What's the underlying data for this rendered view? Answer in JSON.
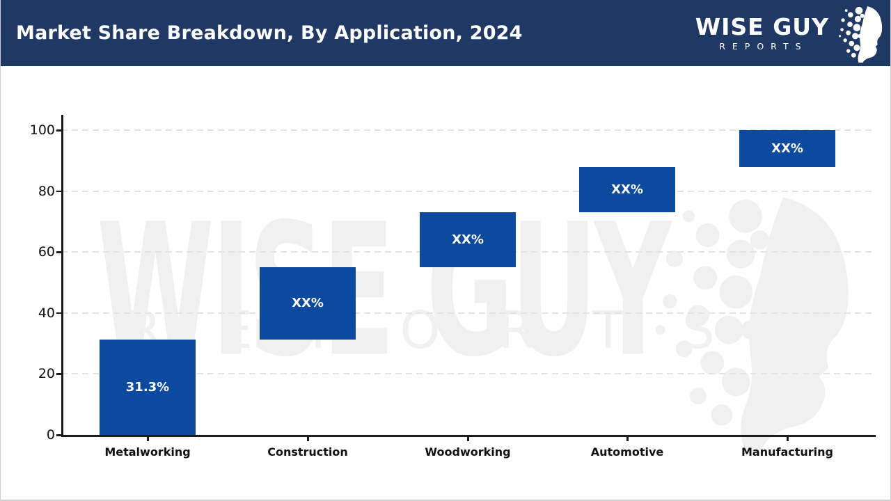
{
  "header": {
    "title": "Market Share Breakdown, By Application, 2024",
    "bg_color": "#1f3864",
    "logo": {
      "line1": "WISE GUY",
      "line2": "REPORTS"
    }
  },
  "watermark": {
    "line1": "WISE GUY",
    "line2": "R E P O R T S"
  },
  "chart_data": {
    "type": "bar",
    "subtype": "waterfall",
    "title": "Market Share Breakdown, By Application, 2024",
    "categories": [
      "Metalworking",
      "Construction",
      "Woodworking",
      "Automotive",
      "Manufacturing"
    ],
    "segments": [
      {
        "category": "Metalworking",
        "start": 0,
        "end": 31.3,
        "value": 31.3,
        "label": "31.3%"
      },
      {
        "category": "Construction",
        "start": 31.3,
        "end": 55,
        "value": 23.7,
        "label": "XX%"
      },
      {
        "category": "Woodworking",
        "start": 55,
        "end": 73,
        "value": 18,
        "label": "XX%"
      },
      {
        "category": "Automotive",
        "start": 73,
        "end": 88,
        "value": 15,
        "label": "XX%"
      },
      {
        "category": "Manufacturing",
        "start": 88,
        "end": 100,
        "value": 12,
        "label": "XX%"
      }
    ],
    "y_ticks": [
      0,
      20,
      40,
      60,
      80,
      100
    ],
    "ylim": [
      0,
      104
    ],
    "xlabel": "",
    "ylabel": "",
    "grid": "horizontal-dashed",
    "legend": "none",
    "bar_color": "#0c4aa0",
    "bar_label_color": "#ffffff",
    "axis_color": "#1a1a1a",
    "gridline_color": "#e3e3e3"
  }
}
